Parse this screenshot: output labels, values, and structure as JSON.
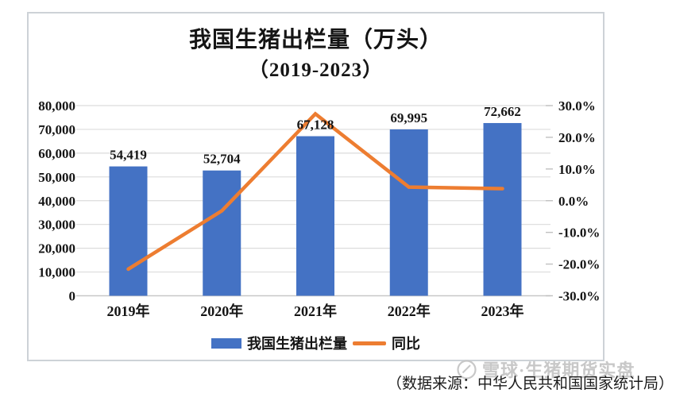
{
  "title": {
    "line1": "我国生猪出栏量（万头）",
    "line2": "（2019-2023）"
  },
  "legend": {
    "bars_label": "我国生猪出栏量",
    "line_label": "同比"
  },
  "source_note": "（数据来源：中华人民共和国国家统计局）",
  "watermark": {
    "logo": "xueqiu-circle-logo",
    "text": "雪球·生猪期货实盘"
  },
  "colors": {
    "bar": "#4472C4",
    "line": "#ED7D31",
    "grid": "#DCDCDC",
    "baseline": "#C7C7C7",
    "tick": "#C0C0C0",
    "axis_text": "#151515",
    "watermark": "#C8C8C8",
    "panel_border": "#CDD2D7"
  },
  "chart_data": {
    "type": "bar",
    "subtype": "bar+line combo, dual axis",
    "title": "我国生猪出栏量（万头）（2019-2023）",
    "categories": [
      "2019年",
      "2020年",
      "2021年",
      "2022年",
      "2023年"
    ],
    "series": [
      {
        "name": "我国生猪出栏量",
        "type": "bar",
        "axis": "left",
        "values": [
          54419,
          52704,
          67128,
          69995,
          72662
        ],
        "labels": [
          "54,419",
          "52,704",
          "67,128",
          "69,995",
          "72,662"
        ]
      },
      {
        "name": "同比",
        "type": "line",
        "axis": "right",
        "values_percent": [
          -21.6,
          -3.2,
          27.4,
          4.3,
          3.8
        ]
      }
    ],
    "left_axis": {
      "min": 0,
      "max": 80000,
      "step": 10000,
      "ticks": [
        "80,000",
        "70,000",
        "60,000",
        "50,000",
        "40,000",
        "30,000",
        "20,000",
        "10,000",
        "0"
      ]
    },
    "right_axis": {
      "min": -30,
      "max": 30,
      "step": 10,
      "ticks": [
        "30.0%",
        "20.0%",
        "10.0%",
        "0.0%",
        "-10.0%",
        "-20.0%",
        "-30.0%"
      ]
    },
    "grid": true,
    "legend_position": "bottom"
  }
}
